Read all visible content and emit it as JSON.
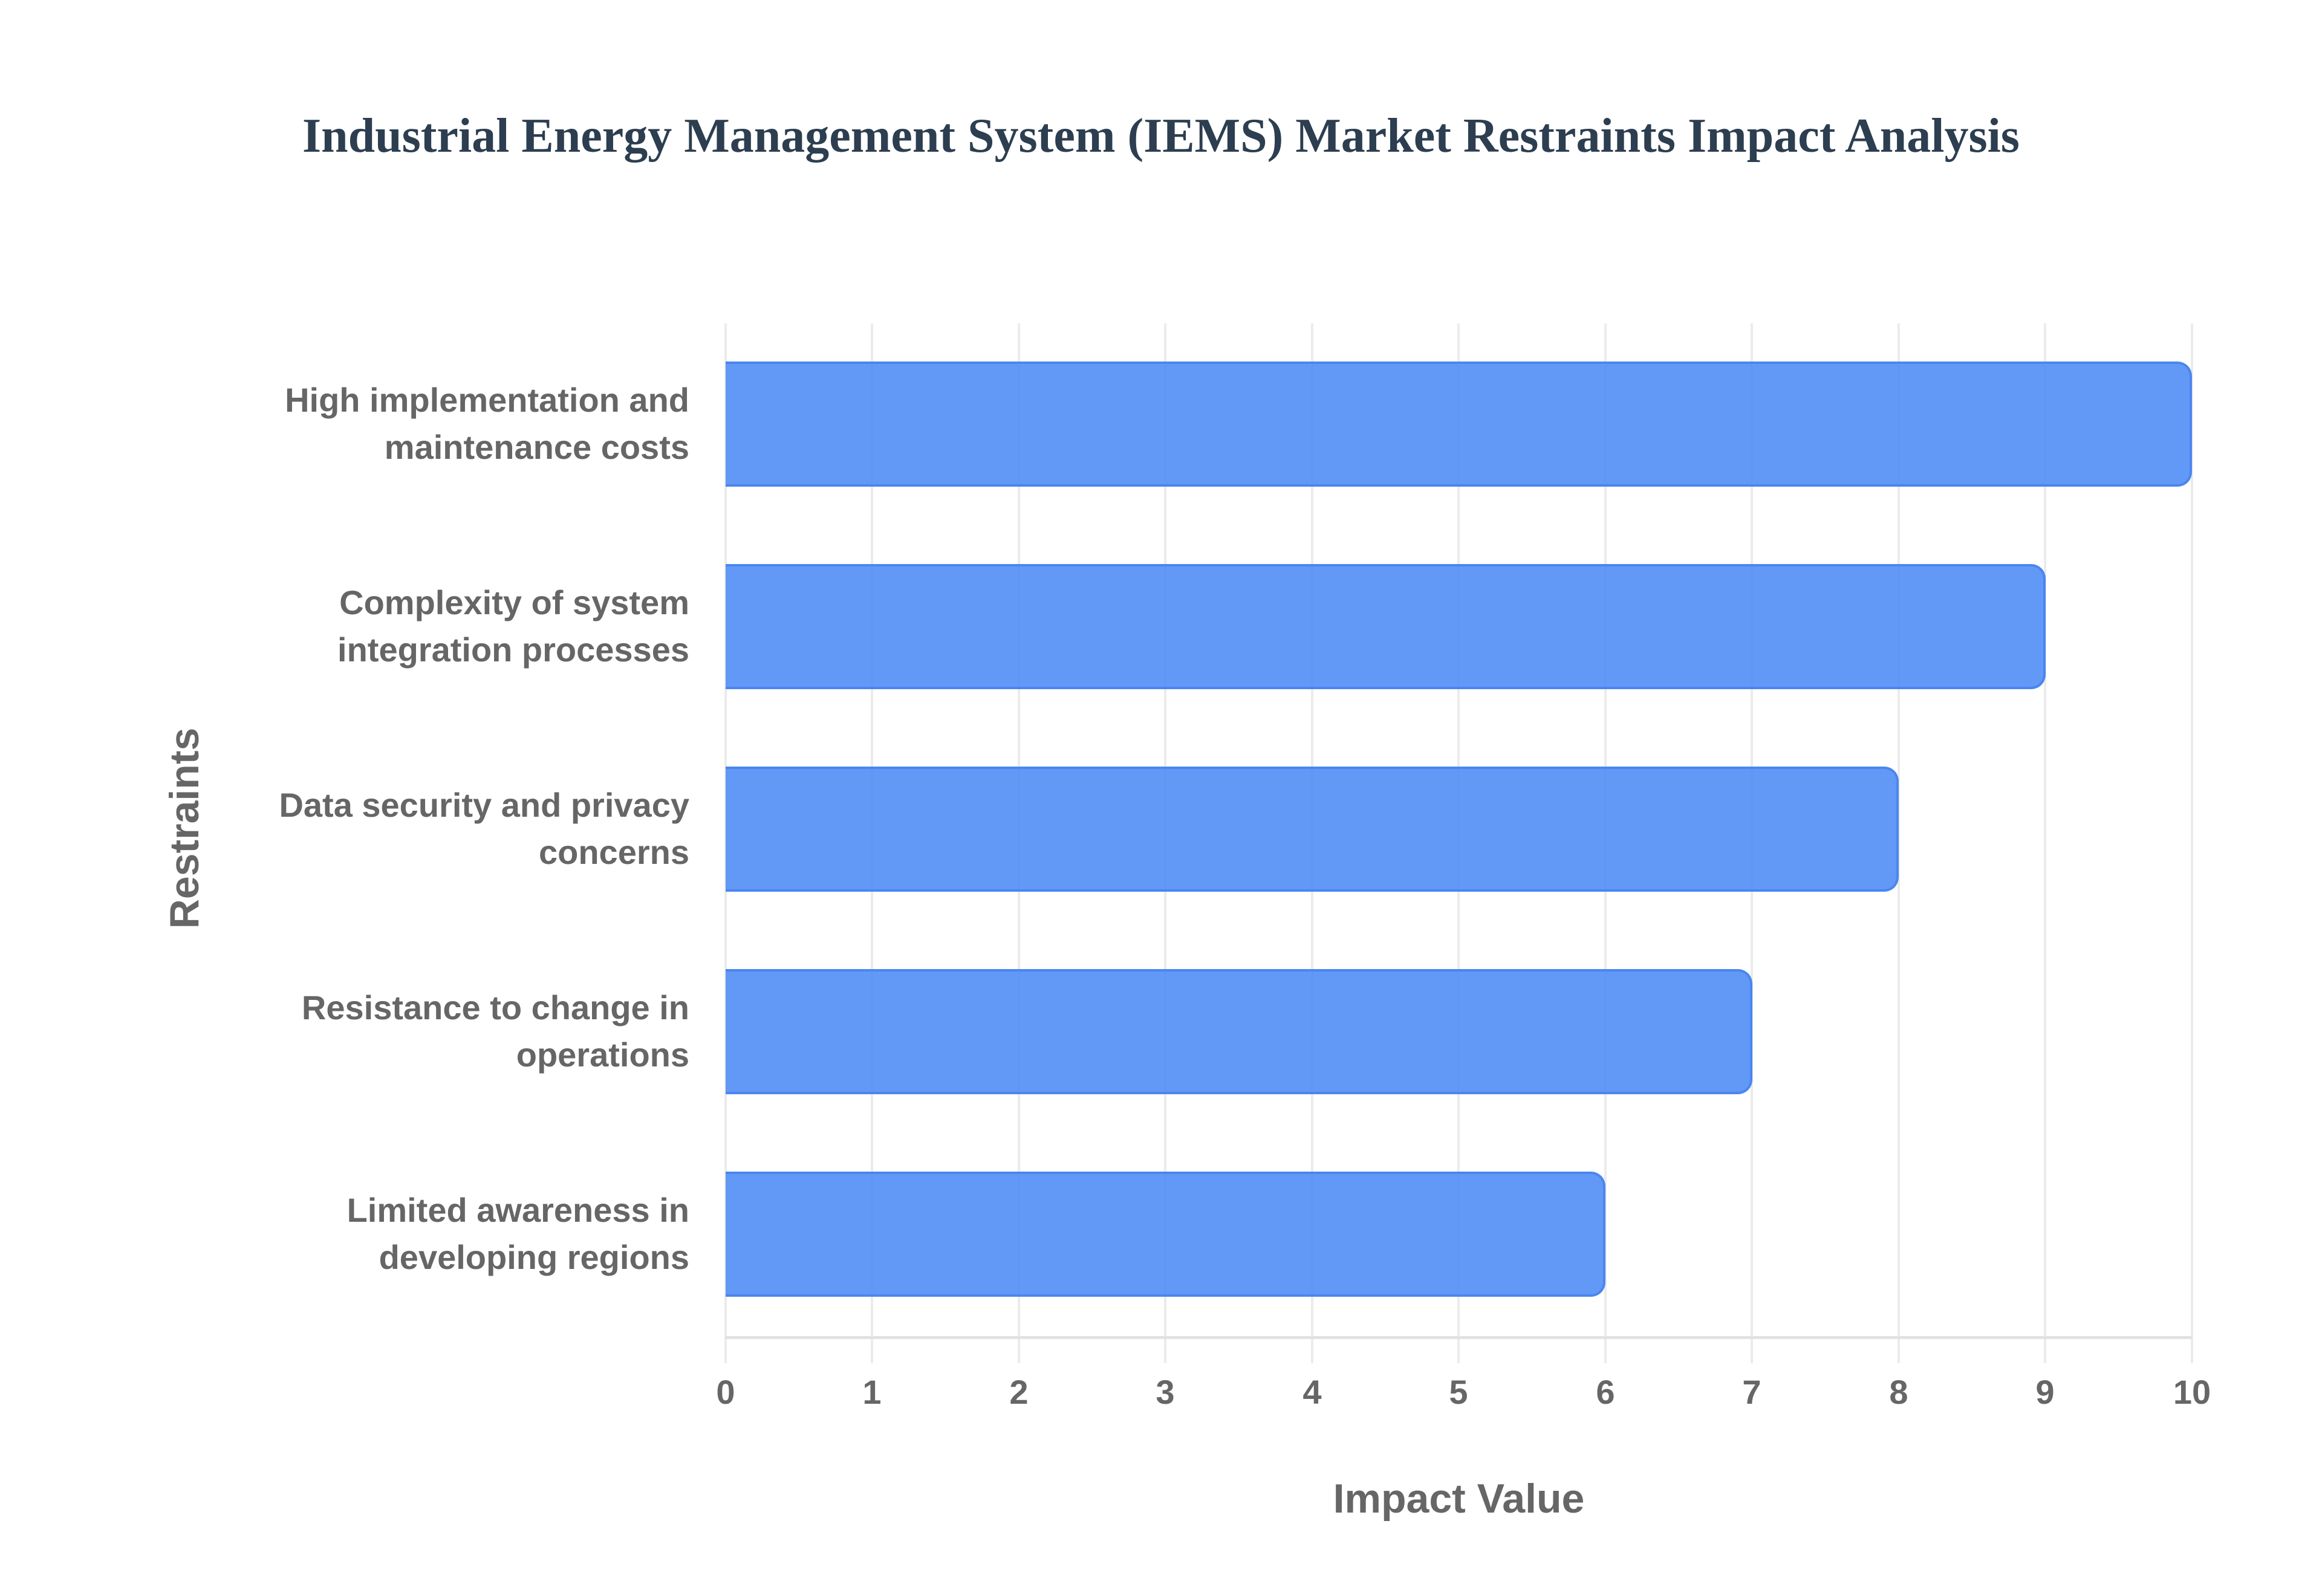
{
  "chart": {
    "title": "Industrial Energy Management System (IEMS) Market Restraints Impact Analysis",
    "x_axis_title": "Impact Value",
    "y_axis_title": "Restraints",
    "bar_color": "#4d8bf5",
    "bar_border_color": "#4a86f0",
    "x_ticks": [
      "0",
      "1",
      "2",
      "3",
      "4",
      "5",
      "6",
      "7",
      "8",
      "9",
      "10"
    ],
    "categories": [
      {
        "line1": "High implementation and",
        "line2": "maintenance costs"
      },
      {
        "line1": "Complexity of system",
        "line2": "integration processes"
      },
      {
        "line1": "Data security and privacy",
        "line2": "concerns"
      },
      {
        "line1": "Resistance to change in",
        "line2": "operations"
      },
      {
        "line1": "Limited awareness in",
        "line2": "developing regions"
      }
    ]
  },
  "chart_data": {
    "type": "bar",
    "orientation": "horizontal",
    "title": "Industrial Energy Management System (IEMS) Market Restraints Impact Analysis",
    "xlabel": "Impact Value",
    "ylabel": "Restraints",
    "categories": [
      "High implementation and maintenance costs",
      "Complexity of system integration processes",
      "Data security and privacy concerns",
      "Resistance to change in operations",
      "Limited awareness in developing regions"
    ],
    "values": [
      10,
      9,
      8,
      7,
      6
    ],
    "xlim": [
      0,
      10
    ],
    "x_ticks": [
      0,
      1,
      2,
      3,
      4,
      5,
      6,
      7,
      8,
      9,
      10
    ],
    "grid": true,
    "legend": null
  }
}
